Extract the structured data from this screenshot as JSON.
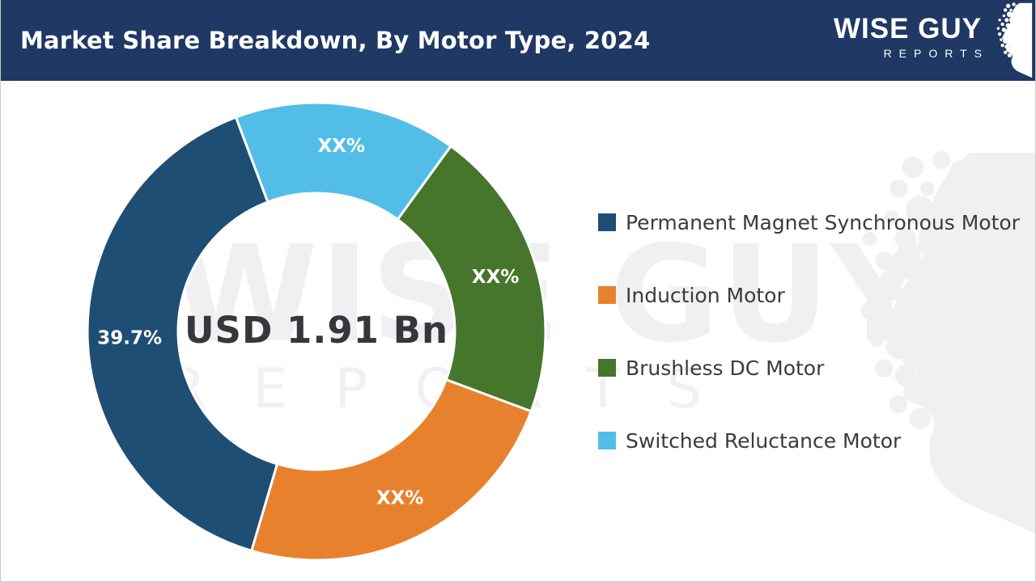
{
  "header": {
    "title": "Market Share Breakdown, By Motor Type, 2024",
    "background_color": "#1F3864",
    "logo": {
      "line1": "WISE GUY",
      "line2": "REPORTS"
    }
  },
  "watermark": {
    "line1": "WISE GUY",
    "line2": "REPORTS"
  },
  "chart_data": {
    "type": "pie",
    "subtype": "donut",
    "title": "Market Share Breakdown, By Motor Type, 2024",
    "center_label": "USD 1.91 Bn",
    "start_angle_deg": -20.6,
    "direction": "clockwise-from-last-series",
    "legend_position": "right",
    "outer_radius_px": 283,
    "inner_radius_px": 171,
    "label_radius_px": 231,
    "series": [
      {
        "name": "Permanent Magnet Synchronous Motor",
        "value": 39.7,
        "display_label": "39.7%",
        "color": "#1F4E74"
      },
      {
        "name": "Induction Motor",
        "value": 23.9,
        "display_label": "XX%",
        "color": "#E8812D"
      },
      {
        "name": "Brushless DC Motor",
        "value": 20.7,
        "display_label": "XX%",
        "color": "#45762C"
      },
      {
        "name": "Switched Reluctance Motor",
        "value": 15.7,
        "display_label": "XX%",
        "color": "#52BEE8"
      }
    ]
  }
}
